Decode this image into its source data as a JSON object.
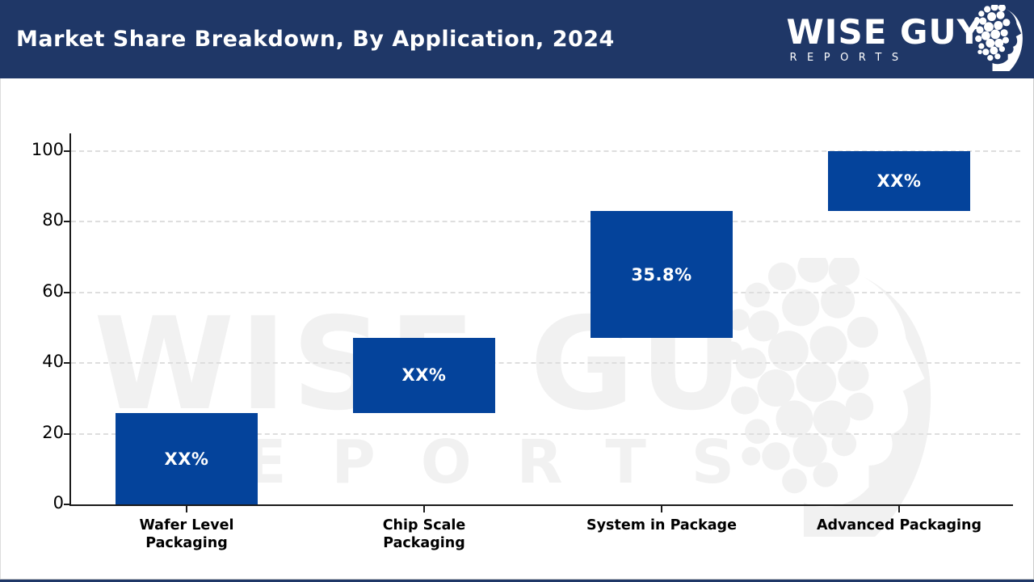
{
  "header": {
    "title": "Market Share Breakdown, By Application, 2024",
    "bg_color": "#1f3767"
  },
  "brand": {
    "name": "WISE GUY",
    "reports": "REPORTS",
    "icon": "dotted-head-profile-icon"
  },
  "watermark": {
    "main": "WISE GU",
    "reports": "REPORTS"
  },
  "chart_data": {
    "type": "bar",
    "variant": "floating-waterfall",
    "title": "Market Share Breakdown, By Application, 2024",
    "categories": [
      "Wafer Level Packaging",
      "Chip Scale Packaging",
      "System in Package",
      "Advanced Packaging"
    ],
    "categories_display": [
      "Wafer Level\nPackaging",
      "Chip Scale\nPackaging",
      "System in Package",
      "Advanced Packaging"
    ],
    "segments": [
      {
        "category": "Wafer Level Packaging",
        "label": "XX%",
        "start": 0,
        "end": 25.8
      },
      {
        "category": "Chip Scale Packaging",
        "label": "XX%",
        "start": 25.8,
        "end": 47.2
      },
      {
        "category": "System in Package",
        "label": "35.8%",
        "start": 47.2,
        "end": 83.0
      },
      {
        "category": "Advanced Packaging",
        "label": "XX%",
        "start": 83.0,
        "end": 100
      }
    ],
    "xlabel": "",
    "ylabel": "",
    "ylim": [
      0,
      100
    ],
    "yticks": [
      0,
      20,
      40,
      60,
      80,
      100
    ],
    "grid": "horizontal-dashed",
    "legend": "none",
    "bar_color": "#04439b",
    "label_color": "#ffffff"
  }
}
